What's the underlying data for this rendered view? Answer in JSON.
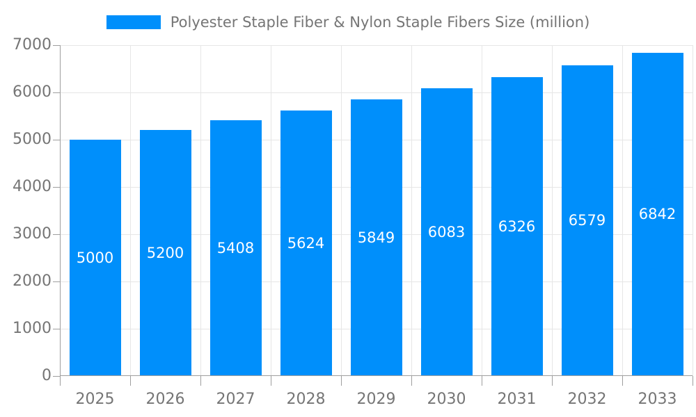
{
  "legend": {
    "label": "Polyester Staple Fiber & Nylon Staple Fibers Size (million)"
  },
  "colors": {
    "bar": "#008FFB",
    "gridline": "#E6E6E6",
    "axis_line": "#9E9E9E",
    "axis_label_text": "#757575",
    "legend_text": "#757575",
    "value_label_text": "#FFFFFF",
    "background": "#FFFFFF"
  },
  "chart_data": {
    "type": "bar",
    "title": "Polyester Staple Fiber & Nylon Staple Fibers Size (million)",
    "categories": [
      "2025",
      "2026",
      "2027",
      "2028",
      "2029",
      "2030",
      "2031",
      "2032",
      "2033"
    ],
    "values": [
      5000,
      5200,
      5408,
      5624,
      5849,
      6083,
      6326,
      6579,
      6842
    ],
    "xlabel": "",
    "ylabel": "",
    "ylim": [
      0,
      7000
    ],
    "yticks": [
      0,
      1000,
      2000,
      3000,
      4000,
      5000,
      6000,
      7000
    ],
    "grid": true,
    "legend_position": "top",
    "value_label_position": "inside-center"
  }
}
